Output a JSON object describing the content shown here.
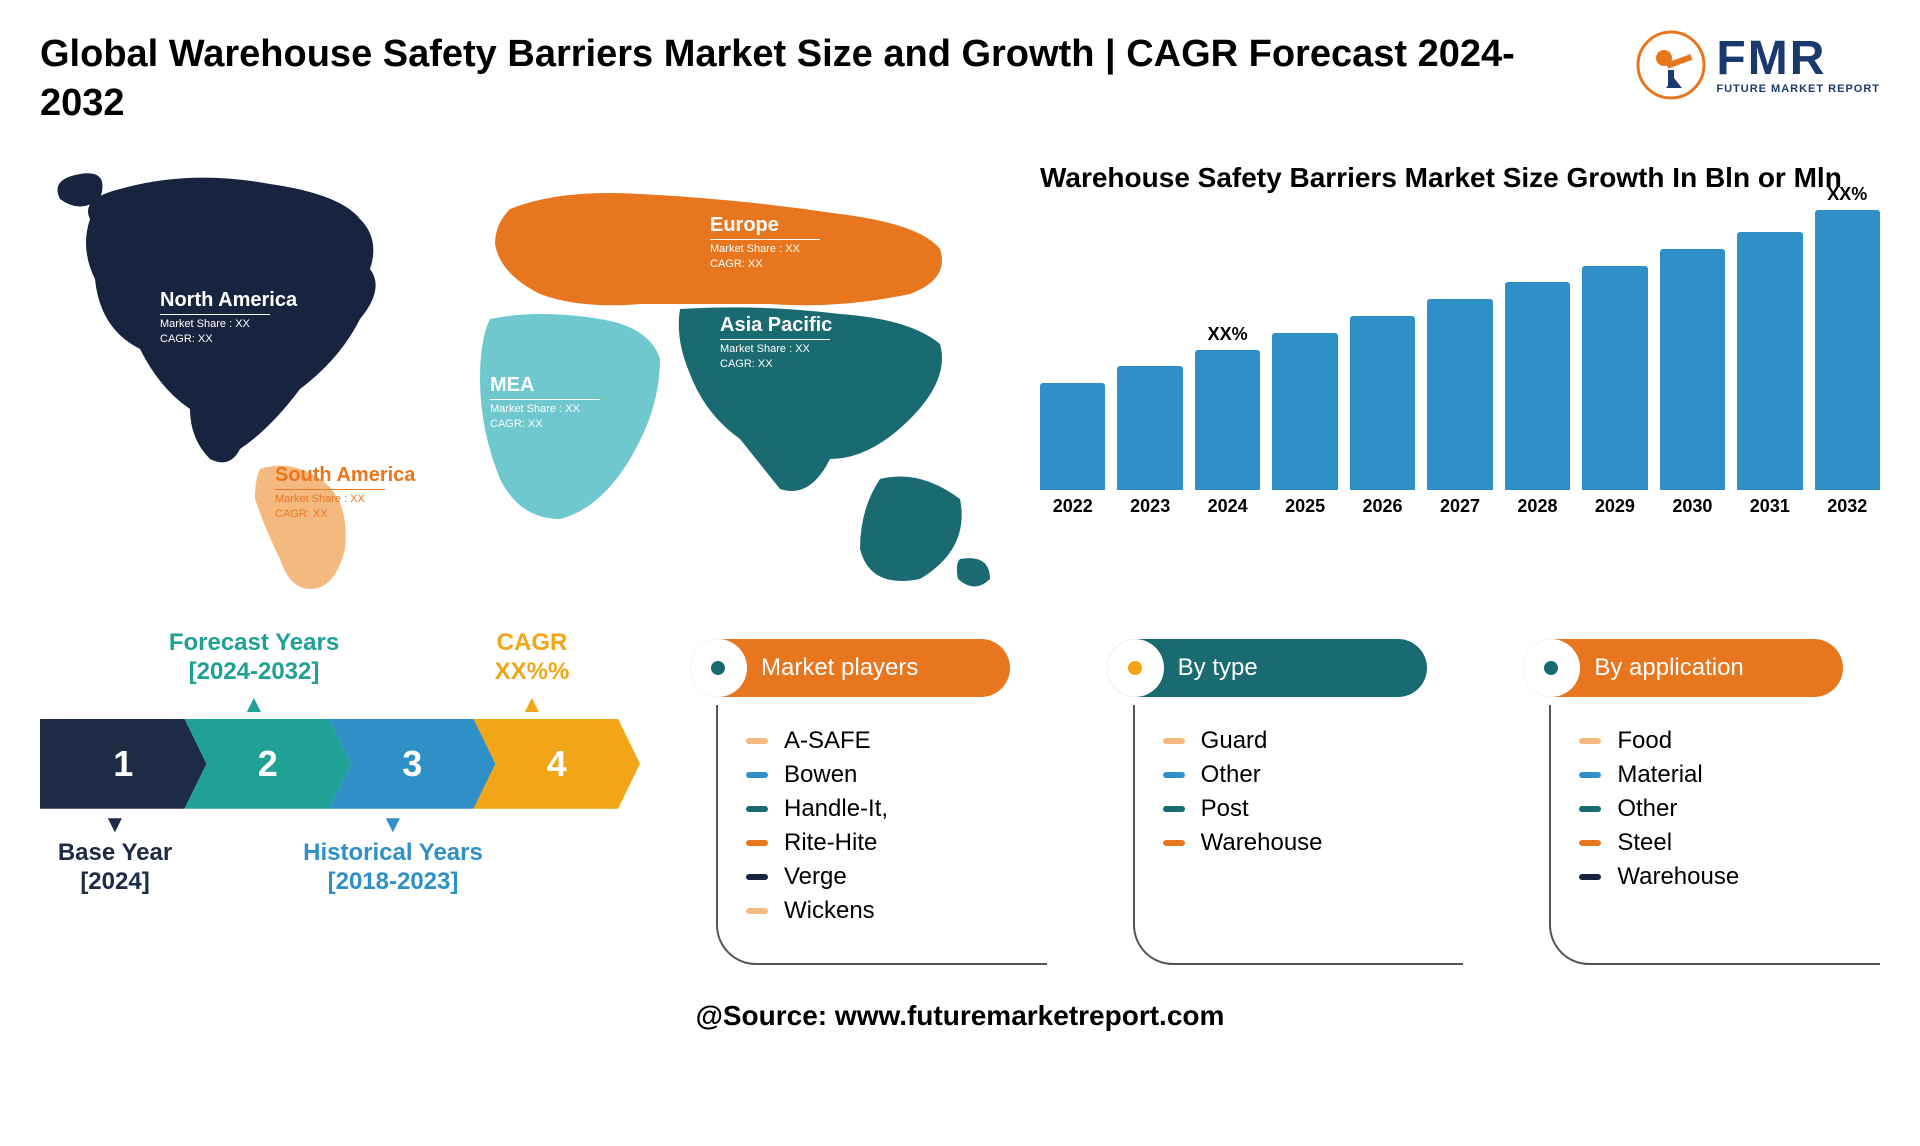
{
  "title": "Global Warehouse Safety Barriers Market Size and Growth | CAGR Forecast 2024-2032",
  "logo": {
    "fmr": "FMR",
    "sub": "FUTURE MARKET REPORT",
    "icon_color": "#e8761f",
    "text_color": "#1a3a6e"
  },
  "source": "@Source: www.futuremarketreport.com",
  "map": {
    "regions": [
      {
        "key": "na",
        "name": "North America",
        "share": "Market Share : XX",
        "cagr": "CAGR: XX",
        "color": "#17233f"
      },
      {
        "key": "sa",
        "name": "South America",
        "share": "Market Share : XX",
        "cagr": "CAGR: XX",
        "color": "#f4b97e"
      },
      {
        "key": "eu",
        "name": "Europe",
        "share": "Market Share : XX",
        "cagr": "CAGR: XX",
        "color": "#e8761f"
      },
      {
        "key": "mea",
        "name": "MEA",
        "share": "Market Share : XX",
        "cagr": "CAGR: XX",
        "color": "#6fc8cd"
      },
      {
        "key": "ap",
        "name": "Asia Pacific",
        "share": "Market Share : XX",
        "cagr": "CAGR: XX",
        "color": "#1a6a72"
      }
    ]
  },
  "chart": {
    "type": "bar",
    "title": "Warehouse Safety Barriers Market Size Growth In Bln or Mln",
    "bar_color": "#2f8fc7",
    "label_fontsize": 18,
    "title_fontsize": 28,
    "background_color": "#ffffff",
    "bar_width_ratio": 0.85,
    "years": [
      "2022",
      "2023",
      "2024",
      "2025",
      "2026",
      "2027",
      "2028",
      "2029",
      "2030",
      "2031",
      "2032"
    ],
    "heights_pct": [
      38,
      44,
      50,
      56,
      62,
      68,
      74,
      80,
      86,
      92,
      100
    ],
    "top_labels": {
      "2024": "XX%",
      "2032": "XX%"
    }
  },
  "timeline": {
    "items": [
      {
        "num": "1",
        "color": "#1d2b44",
        "label": "Base Year [2024]",
        "label_color": "#1d2b44",
        "pos": "bottom"
      },
      {
        "num": "2",
        "color": "#1fa195",
        "label": "Forecast Years [2024-2032]",
        "label_color": "#1fa195",
        "pos": "top"
      },
      {
        "num": "3",
        "color": "#2f8fc7",
        "label": "Historical Years [2018-2023]",
        "label_color": "#2f8fc7",
        "pos": "bottom"
      },
      {
        "num": "4",
        "color": "#f2a516",
        "label": "CAGR XX%%",
        "label_color": "#f2a516",
        "pos": "top"
      }
    ]
  },
  "columns": [
    {
      "title": "Market players",
      "pill_color": "#e8761f",
      "dot_color": "#1a6a72",
      "items": [
        {
          "label": "A-SAFE",
          "dash": "#f4b97e"
        },
        {
          "label": "Bowen",
          "dash": "#2f8fc7"
        },
        {
          "label": "Handle-It,",
          "dash": "#1a6a72"
        },
        {
          "label": "Rite-Hite",
          "dash": "#e8761f"
        },
        {
          "label": "Verge",
          "dash": "#17233f"
        },
        {
          "label": "Wickens",
          "dash": "#f4b97e"
        }
      ]
    },
    {
      "title": "By type",
      "pill_color": "#1a6a72",
      "dot_color": "#f2a516",
      "items": [
        {
          "label": "Guard",
          "dash": "#f4b97e"
        },
        {
          "label": "Other",
          "dash": "#2f8fc7"
        },
        {
          "label": "Post",
          "dash": "#1a6a72"
        },
        {
          "label": "Warehouse",
          "dash": "#e8761f"
        }
      ]
    },
    {
      "title": "By application",
      "pill_color": "#e8761f",
      "dot_color": "#1a6a72",
      "items": [
        {
          "label": "Food",
          "dash": "#f4b97e"
        },
        {
          "label": "Material",
          "dash": "#2f8fc7"
        },
        {
          "label": "Other",
          "dash": "#1a6a72"
        },
        {
          "label": "Steel",
          "dash": "#e8761f"
        },
        {
          "label": "Warehouse",
          "dash": "#17233f"
        }
      ]
    }
  ]
}
